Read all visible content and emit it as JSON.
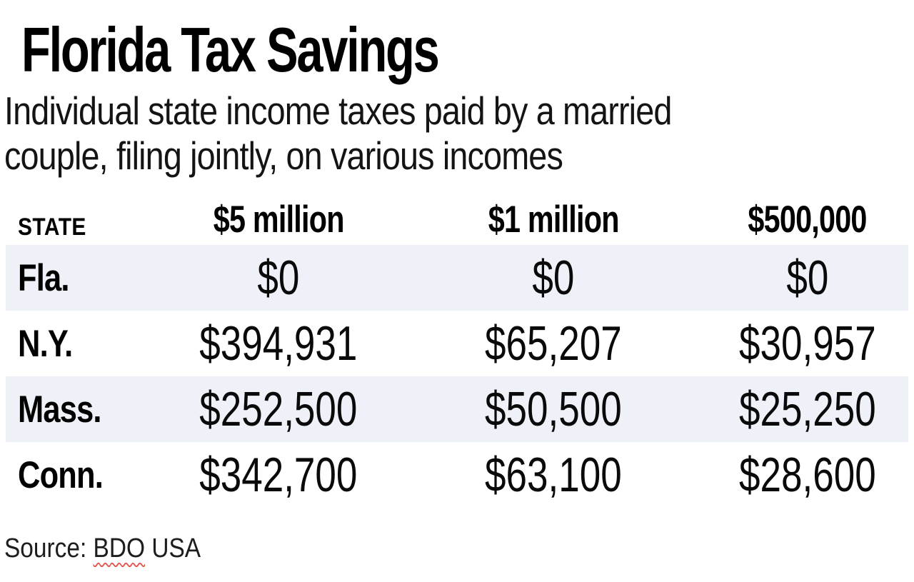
{
  "header": {
    "title": "Florida Tax Savings",
    "subtitle_line1": "Individual state income taxes paid by a married",
    "subtitle_line2": "couple, filing jointly, on various incomes"
  },
  "chart_data": {
    "type": "table",
    "title": "Florida Tax Savings",
    "subtitle": "Individual state income taxes paid by a married couple, filing jointly, on various incomes",
    "columns": [
      "STATE",
      "$5 million",
      "$1 million",
      "$500,000"
    ],
    "rows": [
      {
        "state": "Fla.",
        "values": [
          "$0",
          "$0",
          "$0"
        ]
      },
      {
        "state": "N.Y.",
        "values": [
          "$394,931",
          "$65,207",
          "$30,957"
        ]
      },
      {
        "state": "Mass.",
        "values": [
          "$252,500",
          "$50,500",
          "$25,250"
        ]
      },
      {
        "state": "Conn.",
        "values": [
          "$342,700",
          "$63,100",
          "$28,600"
        ]
      }
    ],
    "striped_row_indexes": [
      0,
      2
    ],
    "source": "Source: BDO USA",
    "layout": {
      "value_alignment": "center",
      "stripe_style": "alternating starting with first data row"
    }
  },
  "source": {
    "label": "Source:",
    "name": "BDO",
    "rest": "USA"
  },
  "colors": {
    "stripe": "#eef1f7",
    "squiggle": "#e2574e",
    "ink": "#000000"
  }
}
